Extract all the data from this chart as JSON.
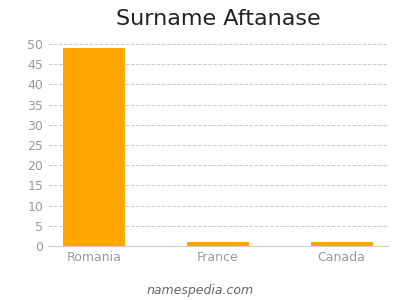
{
  "title": "Surname Aftanase",
  "categories": [
    "Romania",
    "France",
    "Canada"
  ],
  "values": [
    49,
    1,
    1
  ],
  "bar_color": "#FFA500",
  "background_color": "#ffffff",
  "ylim": [
    0,
    52
  ],
  "yticks": [
    0,
    5,
    10,
    15,
    20,
    25,
    30,
    35,
    40,
    45,
    50
  ],
  "title_fontsize": 16,
  "tick_fontsize": 9,
  "watermark": "namespedia.com",
  "watermark_fontsize": 9,
  "grid_color": "#cccccc",
  "tick_color": "#999999"
}
